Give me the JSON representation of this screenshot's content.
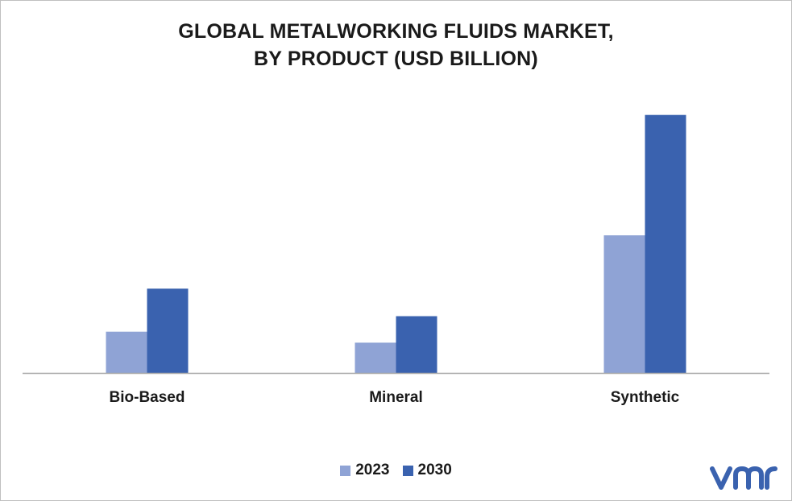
{
  "chart_data": {
    "type": "bar",
    "title_line1": "GLOBAL METALWORKING FLUIDS MARKET,",
    "title_line2": "BY  PRODUCT (USD BILLION)",
    "categories": [
      "Bio-Based",
      "Mineral",
      "Synthetic"
    ],
    "series": [
      {
        "name": "2023",
        "color": "#8fa3d5",
        "values": [
          1.2,
          0.88,
          4.0
        ]
      },
      {
        "name": "2030",
        "color": "#3a62af",
        "values": [
          2.45,
          1.65,
          7.5
        ]
      }
    ],
    "ylim": [
      0,
      8.5
    ],
    "xlabel": "",
    "ylabel": "",
    "grid": false,
    "legend_position": "bottom"
  },
  "logo": {
    "icon": "vmr-logo-icon",
    "color": "#3a62af"
  }
}
